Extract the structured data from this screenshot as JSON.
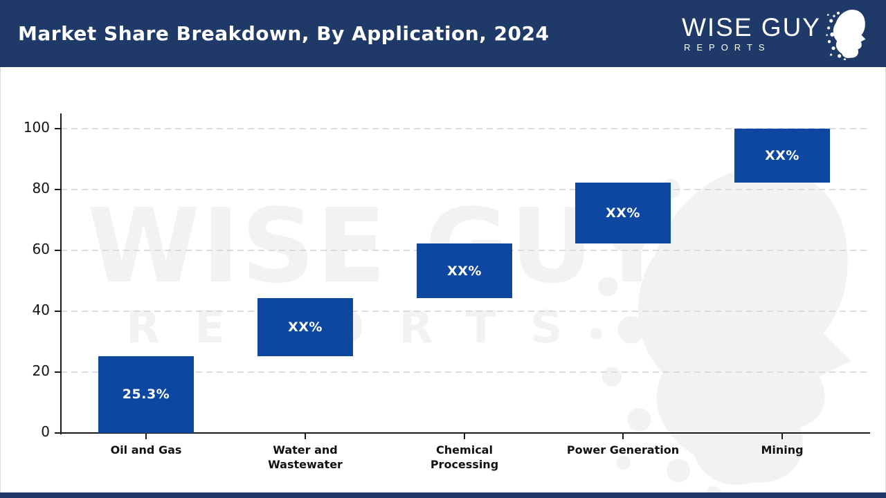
{
  "header": {
    "title": "Market Share Breakdown, By Application, 2024",
    "logo": {
      "wordmark": "WISE GUY",
      "subtext": "REPORTS"
    }
  },
  "watermark": {
    "line1": "WISE GUY",
    "line2": "REPORTS"
  },
  "chart_data": {
    "type": "bar",
    "subtype": "waterfall",
    "title": "Market Share Breakdown, By Application, 2024",
    "xlabel": "",
    "ylabel": "",
    "ylim": [
      0,
      100
    ],
    "yticks": [
      0,
      20,
      40,
      60,
      80,
      100
    ],
    "grid": "horizontal-dashed",
    "legend": "none",
    "categories": [
      "Oil and Gas",
      "Water and Wastewater",
      "Chemical Processing",
      "Power Generation",
      "Mining"
    ],
    "category_label_lines": [
      [
        "Oil and Gas"
      ],
      [
        "Water and",
        "Wastewater"
      ],
      [
        "Chemical",
        "Processing"
      ],
      [
        "Power Generation"
      ],
      [
        "Mining"
      ]
    ],
    "segments": [
      {
        "category": "Oil and Gas",
        "start": 0,
        "end": 25.3,
        "label": "25.3%"
      },
      {
        "category": "Water and Wastewater",
        "start": 25.3,
        "end": 44.2,
        "label": "XX%"
      },
      {
        "category": "Chemical Processing",
        "start": 44.2,
        "end": 62.2,
        "label": "XX%"
      },
      {
        "category": "Power Generation",
        "start": 62.2,
        "end": 82.2,
        "label": "XX%"
      },
      {
        "category": "Mining",
        "start": 82.2,
        "end": 100,
        "label": "XX%"
      }
    ]
  },
  "colors": {
    "header_bg": "#1f3a68",
    "footer_bg": "#1f3a68",
    "bar": "#0d47a1",
    "bar_label": "#ffffff",
    "watermark": "#f2f2f2",
    "grid": "#dcdcdc",
    "axis": "#1a1a1a"
  }
}
